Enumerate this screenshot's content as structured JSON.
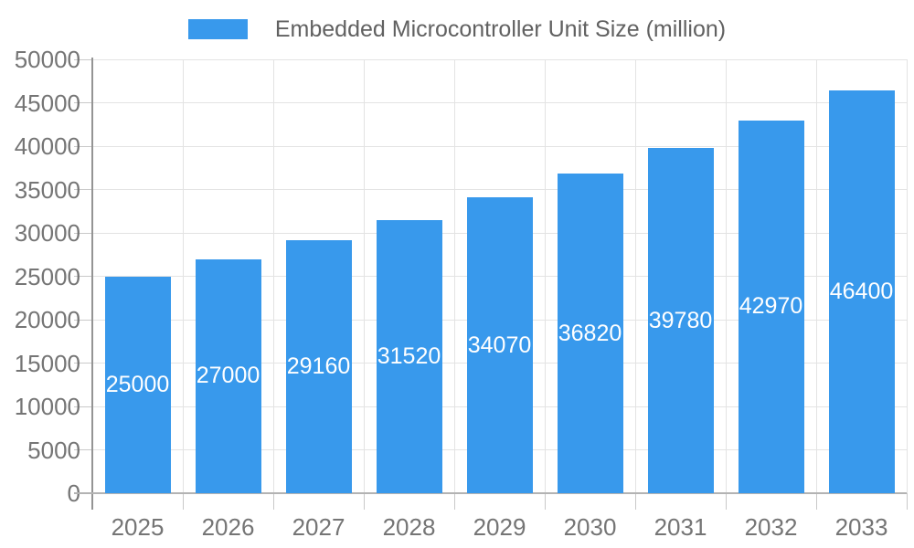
{
  "chart_data": {
    "type": "bar",
    "title": "Embedded Microcontroller Unit Size (million)",
    "xlabel": "",
    "ylabel": "",
    "categories": [
      "2025",
      "2026",
      "2027",
      "2028",
      "2029",
      "2030",
      "2031",
      "2032",
      "2033"
    ],
    "values": [
      25000,
      27000,
      29160,
      31520,
      34070,
      36820,
      39780,
      42970,
      46400
    ],
    "ylim": [
      0,
      50000
    ],
    "yticks": [
      0,
      5000,
      10000,
      15000,
      20000,
      25000,
      30000,
      35000,
      40000,
      45000,
      50000
    ],
    "grid": true,
    "legend_position": "top",
    "bar_color": "#3899ec",
    "value_label_color": "#ffffff",
    "axis_label_color": "#757575",
    "legend_text_color": "#616161",
    "gridline_color": "#e3e3e3"
  }
}
